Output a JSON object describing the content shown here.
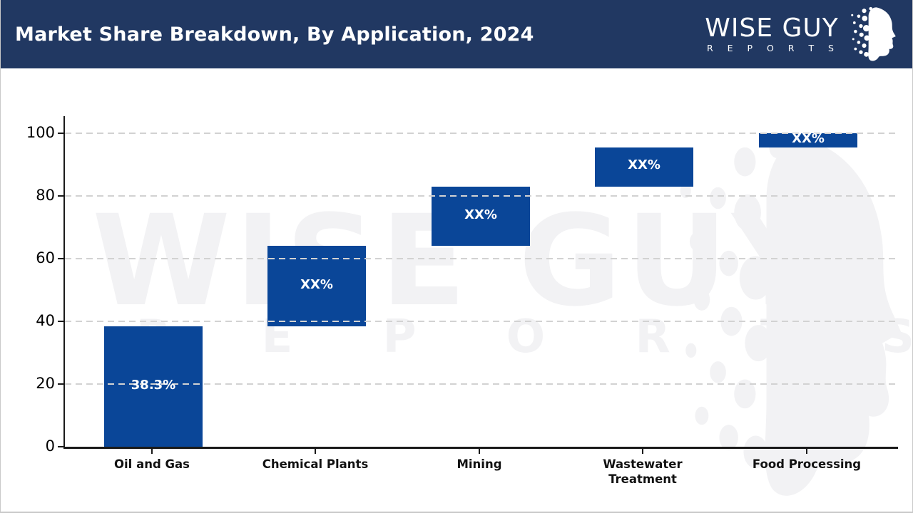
{
  "header": {
    "title": "Market Share Breakdown, By Application, 2024",
    "logo": {
      "line1": "WISE GUY",
      "line2": "R E P O R T S"
    }
  },
  "watermark": {
    "line1": "WISE GUY",
    "line2": "R E P O R T S"
  },
  "colors": {
    "header_bg": "#213862",
    "bar": "#0a4698",
    "grid": "#d2d2d2",
    "axis": "#1a1a1a",
    "bar_label": "#ffffff",
    "watermark": "#f2f2f4"
  },
  "chart_data": {
    "type": "bar",
    "subtype": "waterfall",
    "title": "Market Share Breakdown, By Application, 2024",
    "categories": [
      "Oil and Gas",
      "Chemical Plants",
      "Mining",
      "Wastewater Treatment",
      "Food Processing"
    ],
    "series": [
      {
        "name": "Market Share",
        "segments": [
          {
            "category": "Oil and Gas",
            "start": 0,
            "end": 38.3,
            "value": 38.3,
            "label": "38.3%"
          },
          {
            "category": "Chemical Plants",
            "start": 38.3,
            "end": 64.0,
            "value": 25.7,
            "label": "XX%"
          },
          {
            "category": "Mining",
            "start": 64.0,
            "end": 83.0,
            "value": 19.0,
            "label": "XX%"
          },
          {
            "category": "Wastewater Treatment",
            "start": 83.0,
            "end": 95.5,
            "value": 12.5,
            "label": "XX%"
          },
          {
            "category": "Food Processing",
            "start": 95.5,
            "end": 100.0,
            "value": 4.5,
            "label": "XX%"
          }
        ]
      }
    ],
    "xlabel": "",
    "ylabel": "",
    "ylim": [
      0,
      100
    ],
    "yticks": [
      0,
      20,
      40,
      60,
      80,
      100
    ],
    "grid": "horizontal dashed, drawn above bars",
    "legend": "none"
  }
}
